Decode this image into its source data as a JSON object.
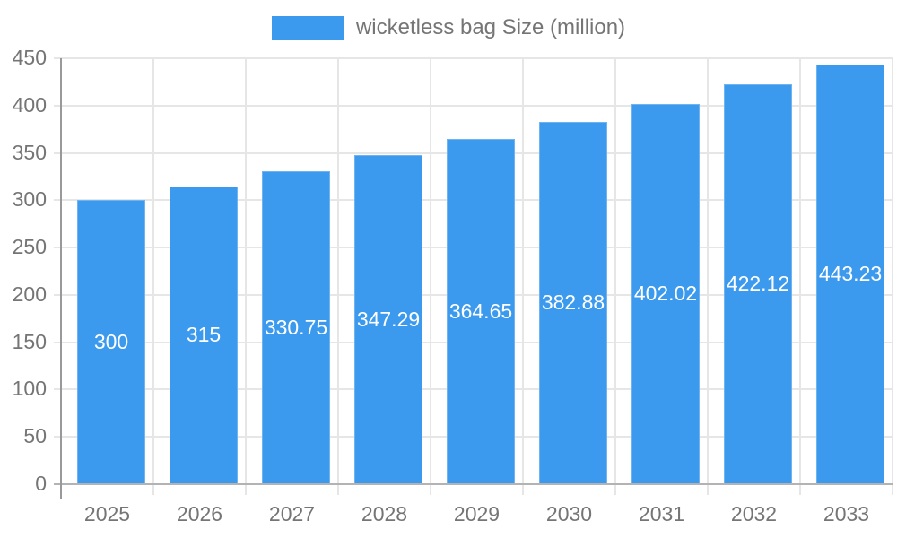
{
  "legend": {
    "label": "wicketless bag Size (million)"
  },
  "chart_data": {
    "type": "bar",
    "title": "wicketless bag Size (million)",
    "categories": [
      "2025",
      "2026",
      "2027",
      "2028",
      "2029",
      "2030",
      "2031",
      "2032",
      "2033"
    ],
    "values": [
      300,
      315,
      330.75,
      347.29,
      364.65,
      382.88,
      402.02,
      422.12,
      443.23
    ],
    "value_labels": [
      "300",
      "315",
      "330.75",
      "347.29",
      "364.65",
      "382.88",
      "402.02",
      "422.12",
      "443.23"
    ],
    "xlabel": "",
    "ylabel": "",
    "ylim": [
      0,
      450
    ],
    "ytick_step": 50,
    "grid": true,
    "legend_position": "top",
    "colors": {
      "bar": "#3B99EE",
      "bar_edge": "#6fb3f1",
      "value_label": "#ffffff",
      "axis_text": "#757575",
      "gridline": "#e6e6e6",
      "baseline": "#b3b3b3",
      "y_axis_line": "#999999"
    }
  }
}
